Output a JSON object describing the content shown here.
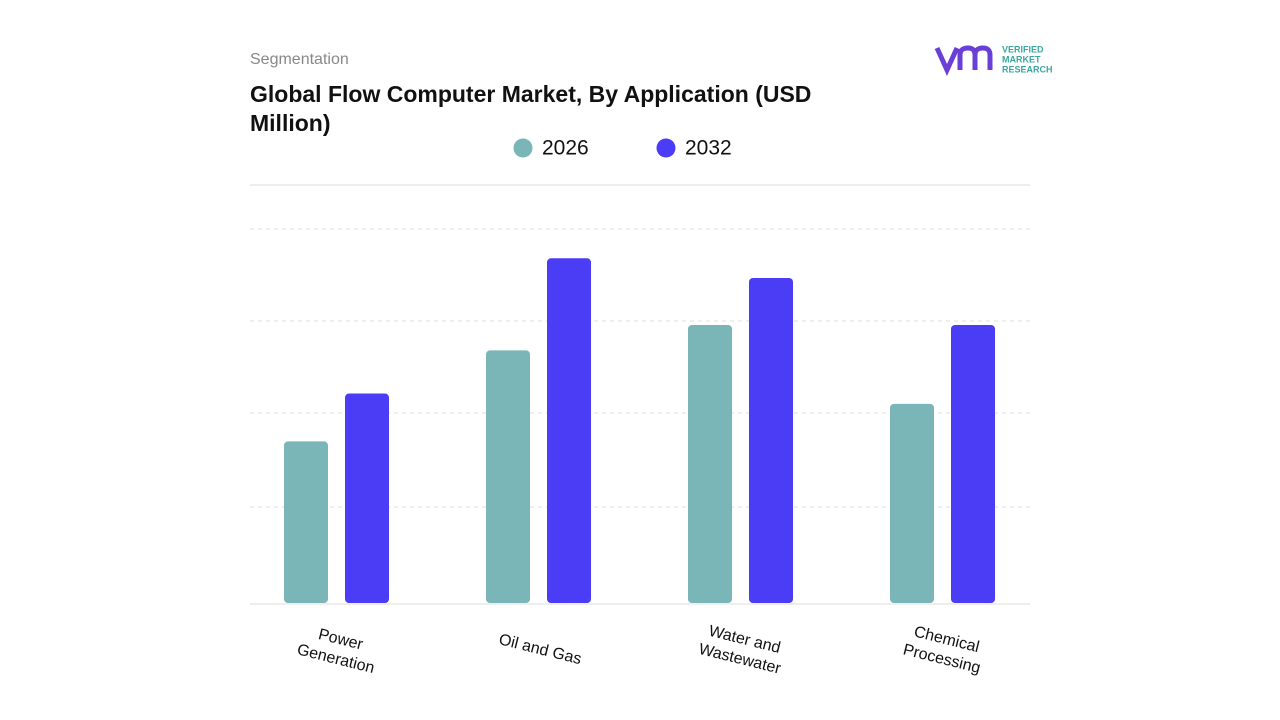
{
  "header": {
    "kicker": "Segmentation",
    "logo": [
      "VERIFIED",
      "MARKET",
      "RESEARCH"
    ]
  },
  "chart_data": {
    "type": "bar",
    "title": "Global Flow Computer Market, By Application (USD Million)",
    "categories": [
      "Power Generation",
      "Oil and Gas",
      "Water and Wastewater",
      "Chemical Processing"
    ],
    "series": [
      {
        "name": "2026",
        "color": "#7ab5b8",
        "values": [
          1.72,
          2.69,
          2.96,
          2.12
        ]
      },
      {
        "name": "2032",
        "color": "#4b3cf5",
        "values": [
          2.23,
          3.67,
          3.46,
          2.96
        ]
      }
    ],
    "ylim": [
      0,
      4.45
    ]
  }
}
